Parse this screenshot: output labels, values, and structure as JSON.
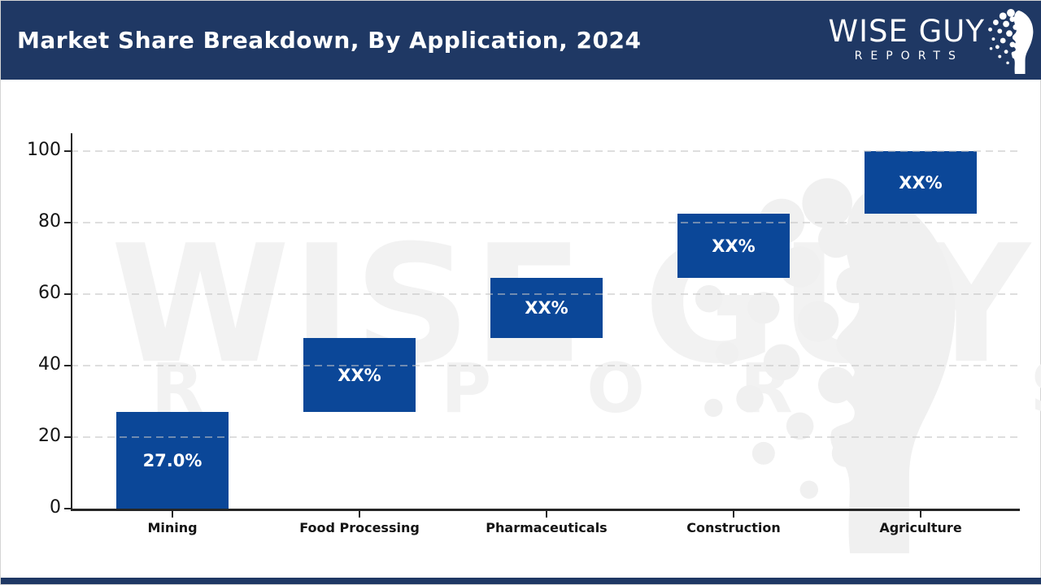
{
  "header": {
    "title": "Market Share Breakdown, By Application, 2024",
    "logo_line1": "WISE GUY",
    "logo_line2": "REPORTS",
    "bg_color": "#1f3864"
  },
  "watermark": {
    "line1": "WISE GUY",
    "line2": "R E P O R T S"
  },
  "chart_data": {
    "type": "bar",
    "subtype": "waterfall",
    "title": "Market Share Breakdown, By Application, 2024",
    "categories": [
      "Mining",
      "Food Processing",
      "Pharmaceuticals",
      "Construction",
      "Agriculture"
    ],
    "bars": [
      {
        "category": "Mining",
        "start": 0,
        "end": 27.0,
        "label": "27.0%"
      },
      {
        "category": "Food Processing",
        "start": 27.0,
        "end": 47.7,
        "label": "XX%"
      },
      {
        "category": "Pharmaceuticals",
        "start": 47.7,
        "end": 64.5,
        "label": "XX%"
      },
      {
        "category": "Construction",
        "start": 64.5,
        "end": 82.5,
        "label": "XX%"
      },
      {
        "category": "Agriculture",
        "start": 82.5,
        "end": 100.0,
        "label": "XX%"
      }
    ],
    "values": [
      27.0,
      20.7,
      16.8,
      18.0,
      17.5
    ],
    "bar_color": "#0b4798",
    "label_color": "#ffffff",
    "ylabel": "",
    "xlabel": "",
    "ylim": [
      0,
      100
    ],
    "yticks": [
      0,
      20,
      40,
      60,
      80,
      100
    ],
    "grid": "horizontal-dashed",
    "legend": "none"
  }
}
